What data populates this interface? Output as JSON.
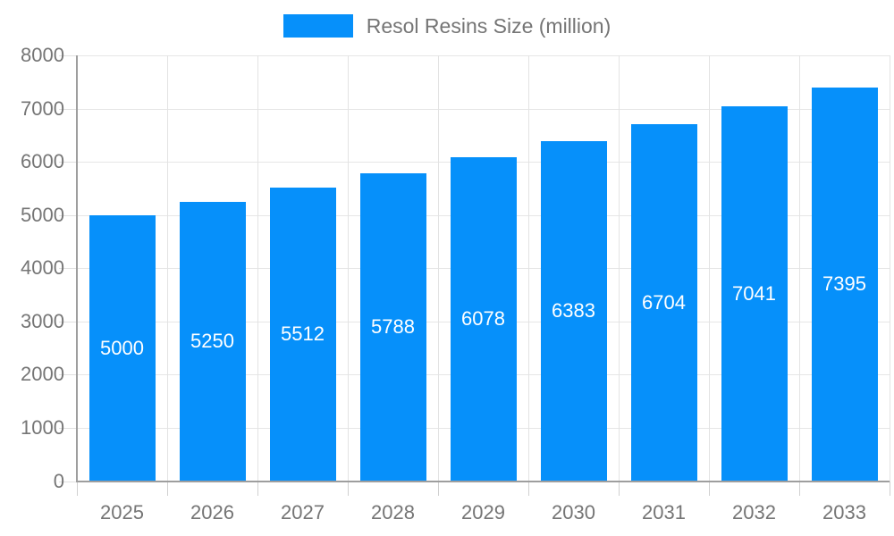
{
  "legend": {
    "label": "Resol Resins Size (million)"
  },
  "colors": {
    "bar": "#0690fa",
    "axis_text": "#757575",
    "bar_label_text": "#ffffff",
    "grid_line": "#e6e6e6",
    "axis_line": "#9e9e9e"
  },
  "chart_data": {
    "type": "bar",
    "title": "Resol Resins Size (million)",
    "series_name": "Resol Resins Size (million)",
    "categories": [
      "2025",
      "2026",
      "2027",
      "2028",
      "2029",
      "2030",
      "2031",
      "2032",
      "2033"
    ],
    "values": [
      5000,
      5250,
      5512,
      5788,
      6078,
      6383,
      6704,
      7041,
      7395
    ],
    "xlabel": "",
    "ylabel": "",
    "ylim": [
      0,
      8000
    ],
    "yticks": [
      0,
      1000,
      2000,
      3000,
      4000,
      5000,
      6000,
      7000,
      8000
    ],
    "grid": true,
    "legend_position": "top-center",
    "bar_color": "#0690fa",
    "value_label_position": "inside-center"
  }
}
